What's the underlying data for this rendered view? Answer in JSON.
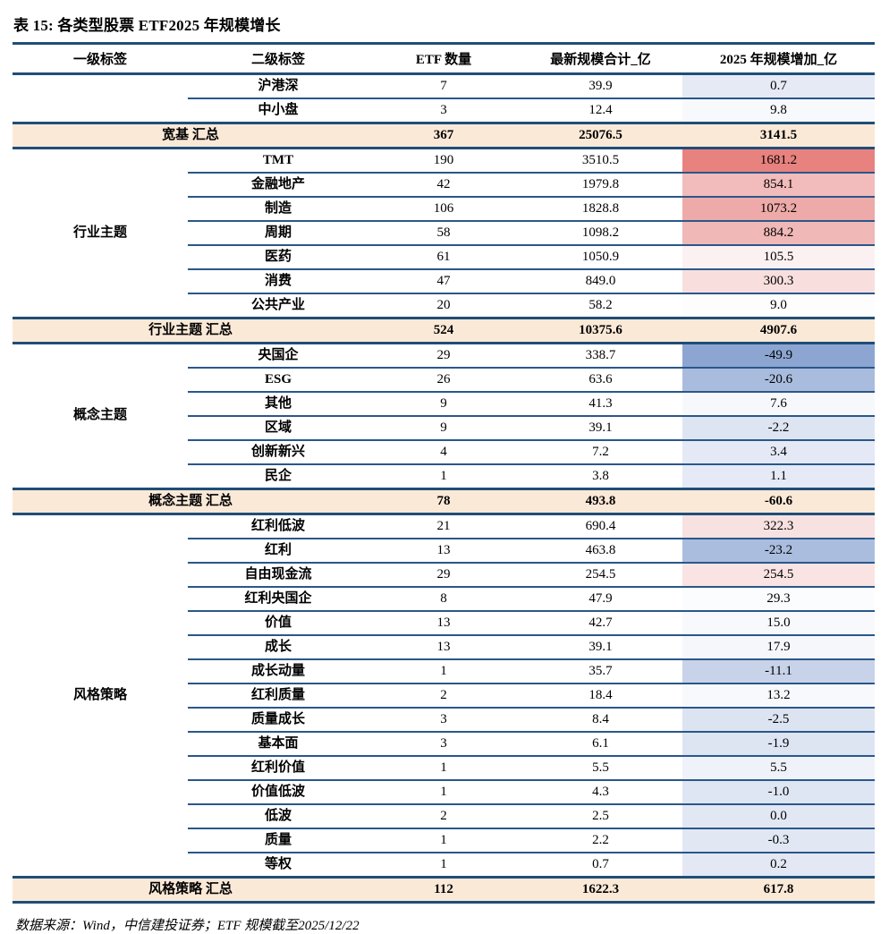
{
  "title": "表 15: 各类型股票 ETF2025 年规模增长",
  "footer": "数据来源：Wind，中信建投证券；ETF 规模截至2025/12/22",
  "colors": {
    "thick_rule": "#1f4e79",
    "thin_rule": "#2a578a",
    "summary_bg": "#fbe9d7",
    "negative_strong": "#8da6d1",
    "positive_strong": "#e8827f"
  },
  "table": {
    "headers": [
      "一级标签",
      "二级标签",
      "ETF 数量",
      "最新规模合计_亿",
      "2025 年规模增加_亿"
    ],
    "rows": [
      {
        "type": "data",
        "group_label": "",
        "group_span": 2,
        "label": "沪港深",
        "count": "7",
        "total": "39.9",
        "change": "0.7",
        "bg": "#e6eaf5"
      },
      {
        "type": "data",
        "label": "中小盘",
        "count": "3",
        "total": "12.4",
        "change": "9.8",
        "bg": "#f8f9fd"
      },
      {
        "type": "summary",
        "label": "宽基 汇总",
        "count": "367",
        "total": "25076.5",
        "change": "3141.5"
      },
      {
        "type": "data",
        "group_label": "行业主题",
        "group_span": 7,
        "label": "TMT",
        "count": "190",
        "total": "3510.5",
        "change": "1681.2",
        "bg": "#e8827f"
      },
      {
        "type": "data",
        "label": "金融地产",
        "count": "42",
        "total": "1979.8",
        "change": "854.1",
        "bg": "#f1bcbb"
      },
      {
        "type": "data",
        "label": "制造",
        "count": "106",
        "total": "1828.8",
        "change": "1073.2",
        "bg": "#edaaa8"
      },
      {
        "type": "data",
        "label": "周期",
        "count": "58",
        "total": "1098.2",
        "change": "884.2",
        "bg": "#f0b8b6"
      },
      {
        "type": "data",
        "label": "医药",
        "count": "61",
        "total": "1050.9",
        "change": "105.5",
        "bg": "#fcf1f2"
      },
      {
        "type": "data",
        "label": "消费",
        "count": "47",
        "total": "849.0",
        "change": "300.3",
        "bg": "#f8dfde"
      },
      {
        "type": "data",
        "label": "公共产业",
        "count": "20",
        "total": "58.2",
        "change": "9.0",
        "bg": "#fdfdfe"
      },
      {
        "type": "summary",
        "label": "行业主题 汇总",
        "count": "524",
        "total": "10375.6",
        "change": "4907.6"
      },
      {
        "type": "data",
        "group_label": "概念主题",
        "group_span": 6,
        "label": "央国企",
        "count": "29",
        "total": "338.7",
        "change": "-49.9",
        "bg": "#8da6d1"
      },
      {
        "type": "data",
        "label": "ESG",
        "count": "26",
        "total": "63.6",
        "change": "-20.6",
        "bg": "#a9bcde"
      },
      {
        "type": "data",
        "label": "其他",
        "count": "9",
        "total": "41.3",
        "change": "7.6",
        "bg": "#f6f8fc"
      },
      {
        "type": "data",
        "label": "区域",
        "count": "9",
        "total": "39.1",
        "change": "-2.2",
        "bg": "#dee5f2"
      },
      {
        "type": "data",
        "label": "创新新兴",
        "count": "4",
        "total": "7.2",
        "change": "3.4",
        "bg": "#e4e9f5"
      },
      {
        "type": "data",
        "label": "民企",
        "count": "1",
        "total": "3.8",
        "change": "1.1",
        "bg": "#e5eaf6"
      },
      {
        "type": "summary",
        "label": "概念主题 汇总",
        "count": "78",
        "total": "493.8",
        "change": "-60.6"
      },
      {
        "type": "data",
        "group_label": "风格策略",
        "group_span": 15,
        "label": "红利低波",
        "count": "21",
        "total": "690.4",
        "change": "322.3",
        "bg": "#f8e1e1"
      },
      {
        "type": "data",
        "label": "红利",
        "count": "13",
        "total": "463.8",
        "change": "-23.2",
        "bg": "#aabddf"
      },
      {
        "type": "data",
        "label": "自由现金流",
        "count": "29",
        "total": "254.5",
        "change": "254.5",
        "bg": "#f9e4e3"
      },
      {
        "type": "data",
        "label": "红利央国企",
        "count": "8",
        "total": "47.9",
        "change": "29.3",
        "bg": "#fbfcfe"
      },
      {
        "type": "data",
        "label": "价值",
        "count": "13",
        "total": "42.7",
        "change": "15.0",
        "bg": "#f7f9fc"
      },
      {
        "type": "data",
        "label": "成长",
        "count": "13",
        "total": "39.1",
        "change": "17.9",
        "bg": "#f5f7fb"
      },
      {
        "type": "data",
        "label": "成长动量",
        "count": "1",
        "total": "35.7",
        "change": "-11.1",
        "bg": "#c8d3e9"
      },
      {
        "type": "data",
        "label": "红利质量",
        "count": "2",
        "total": "18.4",
        "change": "13.2",
        "bg": "#f8f9fc"
      },
      {
        "type": "data",
        "label": "质量成长",
        "count": "3",
        "total": "8.4",
        "change": "-2.5",
        "bg": "#dce3f1"
      },
      {
        "type": "data",
        "label": "基本面",
        "count": "3",
        "total": "6.1",
        "change": "-1.9",
        "bg": "#dde4f2"
      },
      {
        "type": "data",
        "label": "红利价值",
        "count": "1",
        "total": "5.5",
        "change": "5.5",
        "bg": "#eff2f9"
      },
      {
        "type": "data",
        "label": "价值低波",
        "count": "1",
        "total": "4.3",
        "change": "-1.0",
        "bg": "#dfe6f3"
      },
      {
        "type": "data",
        "label": "低波",
        "count": "2",
        "total": "2.5",
        "change": "0.0",
        "bg": "#e2e7f4"
      },
      {
        "type": "data",
        "label": "质量",
        "count": "1",
        "total": "2.2",
        "change": "-0.3",
        "bg": "#e1e7f3"
      },
      {
        "type": "data",
        "label": "等权",
        "count": "1",
        "total": "0.7",
        "change": "0.2",
        "bg": "#e3e8f4"
      },
      {
        "type": "summary",
        "label": "风格策略 汇总",
        "count": "112",
        "total": "1622.3",
        "change": "617.8"
      }
    ]
  }
}
